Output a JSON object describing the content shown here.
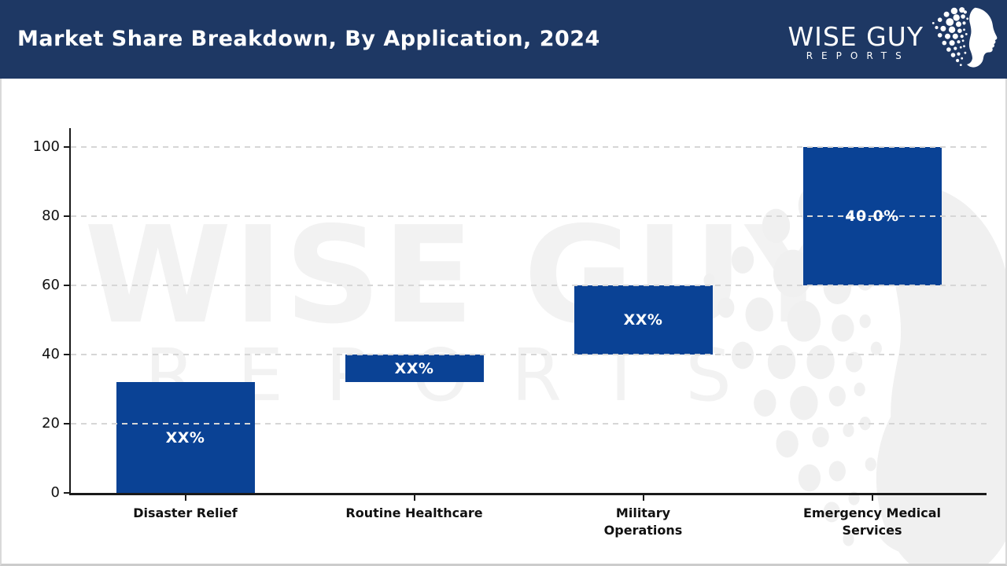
{
  "header": {
    "title": "Market Share Breakdown, By Application, 2024",
    "background_color": "#1e3864",
    "logo": {
      "line1": "WISE GUY",
      "line2": "REPORTS"
    }
  },
  "watermark": {
    "line1": "WISE GUY",
    "line2": "REPORTS",
    "color": "#f2f2f2"
  },
  "chart_data": {
    "type": "bar",
    "subtype": "waterfall",
    "title": "Market Share Breakdown, By Application, 2024",
    "xlabel": "",
    "ylabel": "",
    "ylim": [
      0,
      100
    ],
    "yticks": [
      0,
      20,
      40,
      60,
      80,
      100
    ],
    "grid": "horizontal-dashed",
    "legend": "none",
    "bar_color": "#0a4295",
    "grid_color": "#d6d6d6",
    "axis_color": "#1a1a1a",
    "categories": [
      "Disaster Relief",
      "Routine Healthcare",
      "Military\nOperations",
      "Emergency Medical\nServices"
    ],
    "segments": [
      {
        "category": "Disaster Relief",
        "start": 0,
        "end": 32,
        "value": 32,
        "label": "XX%"
      },
      {
        "category": "Routine Healthcare",
        "start": 32,
        "end": 40,
        "value": 8,
        "label": "XX%"
      },
      {
        "category": "Military Operations",
        "start": 40,
        "end": 60,
        "value": 20,
        "label": "XX%"
      },
      {
        "category": "Emergency Medical Services",
        "start": 60,
        "end": 100,
        "value": 40,
        "label": "40.0%"
      }
    ]
  }
}
